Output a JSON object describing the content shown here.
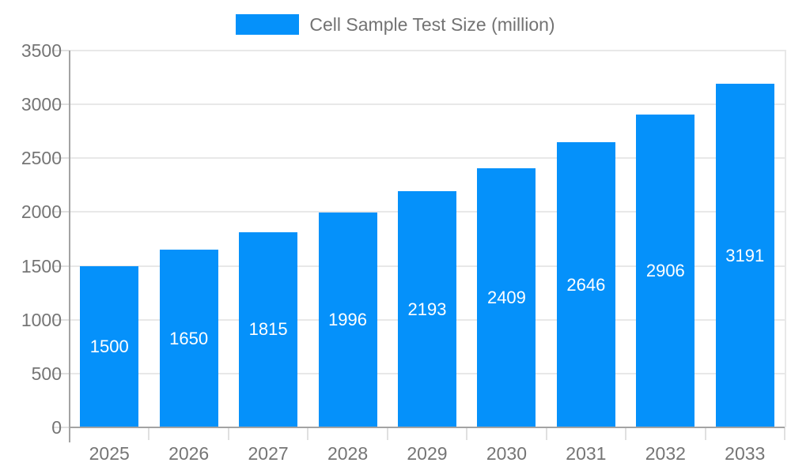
{
  "chart_data": {
    "type": "bar",
    "title": "Cell Sample Test Size (million)",
    "categories": [
      "2025",
      "2026",
      "2027",
      "2028",
      "2029",
      "2030",
      "2031",
      "2032",
      "2033"
    ],
    "values": [
      1500,
      1650,
      1815,
      1996,
      2193,
      2409,
      2646,
      2906,
      3191
    ],
    "series": [
      {
        "name": "Cell Sample Test Size (million)",
        "values": [
          1500,
          1650,
          1815,
          1996,
          2193,
          2409,
          2646,
          2906,
          3191
        ]
      }
    ],
    "xlabel": "",
    "ylabel": "",
    "ylim": [
      0,
      3500
    ],
    "yticks": [
      0,
      500,
      1000,
      1500,
      2000,
      2500,
      3000,
      3500
    ],
    "grid": true,
    "legend_position": "top-center",
    "value_labels": "inside-bar-centered",
    "colors": {
      "bar": "#0591fa",
      "bar_label": "#ffffff",
      "axis_text": "#757575",
      "legend_text": "#737373",
      "grid_line": "#e8e8e8",
      "axis_line": "#a3a3a3",
      "tick_line": "#e0e0e0",
      "background": "#ffffff"
    }
  }
}
